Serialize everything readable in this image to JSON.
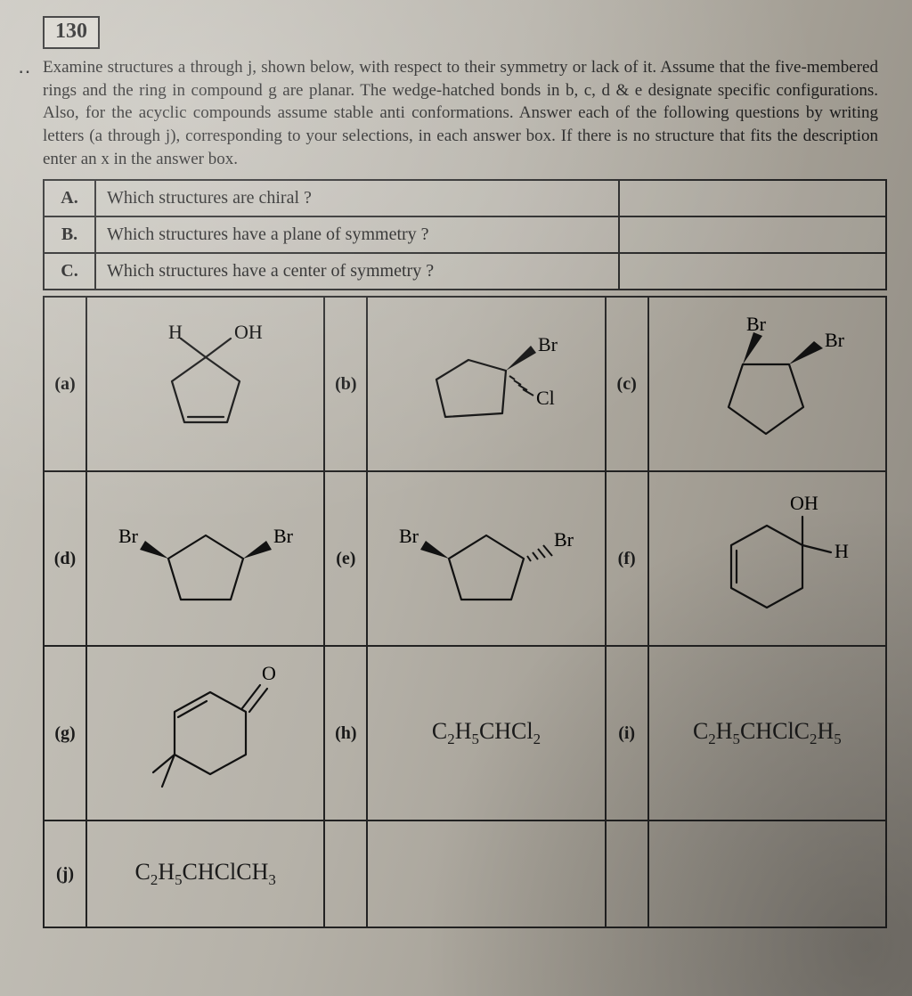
{
  "question_number": "130",
  "instruction": "Examine structures a through j, shown below, with respect to their symmetry or lack of it. Assume that the five-membered rings and the ring in compound g are planar. The wedge-hatched bonds in b, c, d & e designate specific configurations. Also, for the acyclic compounds assume stable anti conformations. Answer each of the following questions by writing letters (a through j), corresponding to your selections, in each answer box. If there is no structure that fits the description enter an x in the answer box.",
  "questions": {
    "A": "Which structures are chiral ?",
    "B": "Which structures have a plane of symmetry ?",
    "C": "Which structures have a center of symmetry ?"
  },
  "structures": {
    "a": {
      "type": "svg",
      "desc": "cyclopent-3-en-1-ol, H and OH on C1",
      "labels": {
        "H": "H",
        "OH": "OH"
      },
      "stroke": "#111",
      "fill": "none"
    },
    "b": {
      "type": "svg",
      "desc": "cyclopentane, Br wedge, Cl hash at same C",
      "labels": {
        "Br": "Br",
        "Cl": "Cl"
      },
      "stroke": "#111"
    },
    "c": {
      "type": "svg",
      "desc": "cis-1,2-dibromocyclopentane (both wedges up)",
      "labels": {
        "Br1": "Br",
        "Br2": "Br"
      },
      "stroke": "#111"
    },
    "d": {
      "type": "svg",
      "desc": "cis-1,3-dibromocyclopentane (both wedges up/forward)",
      "labels": {
        "Br1": "Br",
        "Br2": "Br"
      },
      "stroke": "#111"
    },
    "e": {
      "type": "svg",
      "desc": "trans-1,3-dibromocyclopentane (one wedge, one hash)",
      "labels": {
        "Br1": "Br",
        "Br2": "Br"
      },
      "stroke": "#111"
    },
    "f": {
      "type": "svg",
      "desc": "cyclohex-2-en-1-ol, OH and H on C1",
      "labels": {
        "OH": "OH",
        "H": "H"
      },
      "stroke": "#111"
    },
    "g": {
      "type": "svg",
      "desc": "4,4-dimethylcyclohex-2-en-1-one",
      "labels": {
        "O": "O"
      },
      "stroke": "#111"
    },
    "h": {
      "type": "formula",
      "text": "C2H5CHCl2",
      "segments": [
        {
          "t": "C"
        },
        {
          "t": "2",
          "sub": true
        },
        {
          "t": "H"
        },
        {
          "t": "5",
          "sub": true
        },
        {
          "t": "CHCl"
        },
        {
          "t": "2",
          "sub": true
        }
      ]
    },
    "i": {
      "type": "formula",
      "text": "C2H5CHClC2H5",
      "segments": [
        {
          "t": "C"
        },
        {
          "t": "2",
          "sub": true
        },
        {
          "t": "H"
        },
        {
          "t": "5",
          "sub": true
        },
        {
          "t": "CHClC"
        },
        {
          "t": "2",
          "sub": true
        },
        {
          "t": "H"
        },
        {
          "t": "5",
          "sub": true
        }
      ]
    },
    "j": {
      "type": "formula",
      "text": "C2H5CHClCH3",
      "segments": [
        {
          "t": "C"
        },
        {
          "t": "2",
          "sub": true
        },
        {
          "t": "H"
        },
        {
          "t": "5",
          "sub": true
        },
        {
          "t": "CHClCH"
        },
        {
          "t": "3",
          "sub": true
        }
      ]
    }
  },
  "row_labels": {
    "a": "(a)",
    "b": "(b)",
    "c": "(c)",
    "d": "(d)",
    "e": "(e)",
    "f": "(f)",
    "g": "(g)",
    "h": "(h)",
    "i": "(i)",
    "j": "(j)"
  },
  "svg_style": {
    "stroke_width": 2.2,
    "font_family": "Times New Roman, serif",
    "label_fontsize": 22
  }
}
